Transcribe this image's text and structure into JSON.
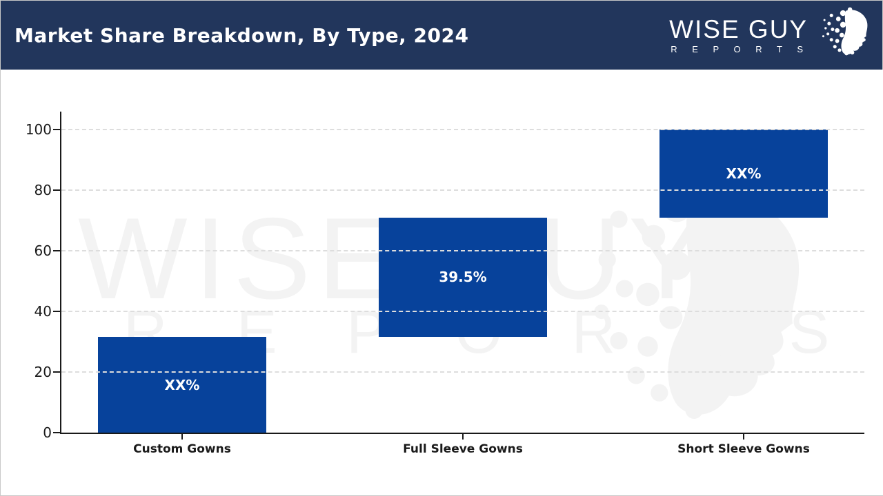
{
  "header": {
    "title": "Market Share Breakdown, By Type, 2024",
    "bg_color": "#22365C",
    "logo": {
      "line1": "WISE GUY",
      "line2": "R E P O R T S"
    }
  },
  "watermark": {
    "line1": "WISE GUY",
    "line2": "R E P O R T S"
  },
  "chart_data": {
    "type": "bar",
    "variant": "floating-segment-bars",
    "title": "Market Share Breakdown, By Type, 2024",
    "categories": [
      "Custom Gowns",
      "Full Sleeve Gowns",
      "Short Sleeve Gowns"
    ],
    "series": [
      {
        "name": "Market Share (%)",
        "bars": [
          {
            "category": "Custom Gowns",
            "start": 0,
            "end": 31.5,
            "label": "XX%"
          },
          {
            "category": "Full Sleeve Gowns",
            "start": 31.5,
            "end": 71,
            "label": "39.5%"
          },
          {
            "category": "Short Sleeve Gowns",
            "start": 71,
            "end": 100,
            "label": "XX%"
          }
        ]
      }
    ],
    "xlabel": "",
    "ylabel": "",
    "ylim": [
      0,
      106
    ],
    "yticks": [
      0,
      20,
      40,
      60,
      80,
      100
    ],
    "grid": "dashed-horizontal-over-bars",
    "legend": "none",
    "bar_color": "#07429B",
    "bar_label_color": "#FFFFFF",
    "axis_color": "#1A1A1A",
    "grid_color": "#DDDDDD"
  }
}
